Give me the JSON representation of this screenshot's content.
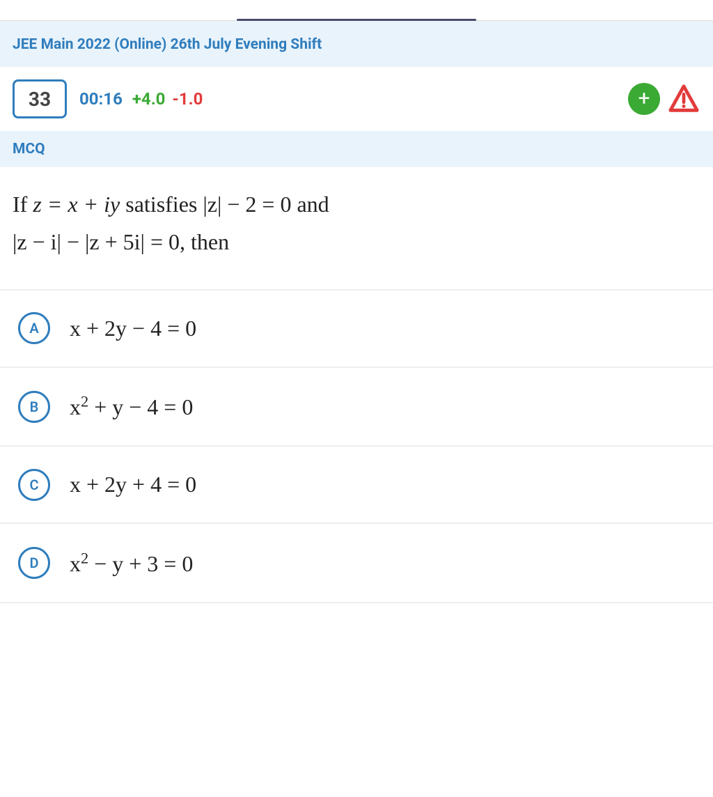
{
  "header": {
    "exam_title": "JEE Main 2022 (Online) 26th July Evening Shift",
    "title_color": "#2f7dbd",
    "banner_bg": "#e9f3fb"
  },
  "meta": {
    "question_number": "33",
    "timer": "00:16",
    "positive_marks": "+4.0",
    "negative_marks": "-1.0",
    "plus_icon_bg": "#3aaa35",
    "alert_icon_color": "#e23b3b"
  },
  "question": {
    "type_label": "MCQ",
    "line1_prefix": "If ",
    "line1_eq_a": "z = x + iy",
    "line1_mid": " satisfies ",
    "line1_eq_b": "|z| − 2 = 0",
    "line1_suffix": " and",
    "line2_eq": "|z − i| − |z + 5i| = 0",
    "line2_suffix": ", then"
  },
  "options": [
    {
      "label": "A",
      "expr_html": "<span class=\"mi\">x</span> + 2<span class=\"mi\">y</span> − 4 = 0"
    },
    {
      "label": "B",
      "expr_html": "<span class=\"mi\">x</span><sup>2</sup> + <span class=\"mi\">y</span> − 4 = 0"
    },
    {
      "label": "C",
      "expr_html": "<span class=\"mi\">x</span> + 2<span class=\"mi\">y</span> + 4 = 0"
    },
    {
      "label": "D",
      "expr_html": "<span class=\"mi\">x</span><sup>2</sup> − <span class=\"mi\">y</span> + 3 = 0"
    }
  ],
  "styling": {
    "accent_color": "#2f7dbd",
    "positive_color": "#3aaa35",
    "negative_color": "#e23b3b",
    "body_font_size": 32,
    "option_border": "#eee"
  }
}
